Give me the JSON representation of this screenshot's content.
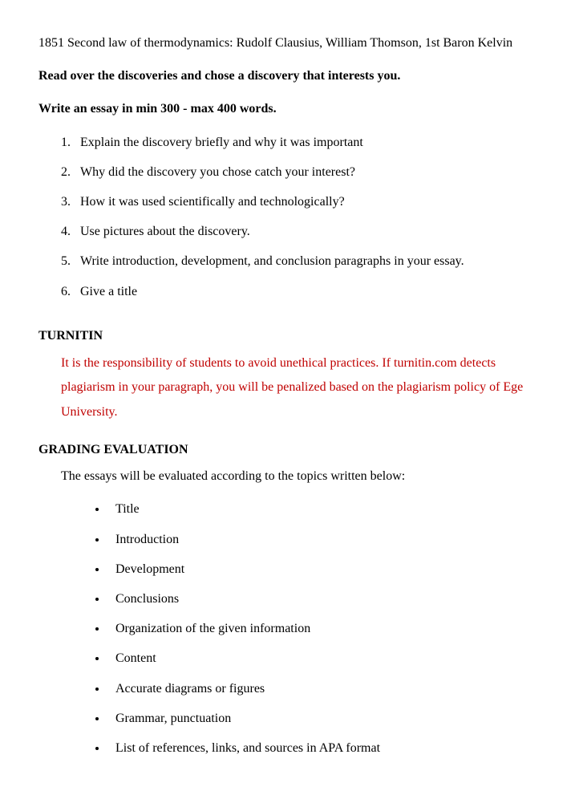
{
  "intro_line": "1851 Second law of thermodynamics: Rudolf Clausius, William Thomson, 1st Baron Kelvin",
  "instruction_bold_1": "Read over the discoveries and chose a discovery that interests you.",
  "instruction_bold_2": "Write an essay in min 300 - max 400 words.",
  "numbered_items": [
    "Explain the discovery briefly and why it was important",
    "Why did the discovery you chose catch your interest?",
    "How it was used scientifically and technologically?",
    "Use pictures about the discovery.",
    "Write introduction, development, and conclusion paragraphs in your essay.",
    "Give a title"
  ],
  "turnitin_heading": "TURNITIN",
  "turnitin_body": "It is the responsibility of students to avoid unethical practices. If turnitin.com detects plagiarism in your paragraph, you will be penalized based on the plagiarism policy of Ege University.",
  "grading_heading": "GRADING EVALUATION",
  "grading_intro": "The essays will be evaluated according to the topics written below:",
  "bulleted_items": [
    "Title",
    "Introduction",
    "Development",
    "Conclusions",
    "Organization of the given information",
    "Content",
    "Accurate diagrams or figures",
    "Grammar, punctuation",
    "List of references, links, and sources in APA format"
  ],
  "colors": {
    "text": "#000000",
    "warning_text": "#c00000",
    "background": "#ffffff"
  }
}
